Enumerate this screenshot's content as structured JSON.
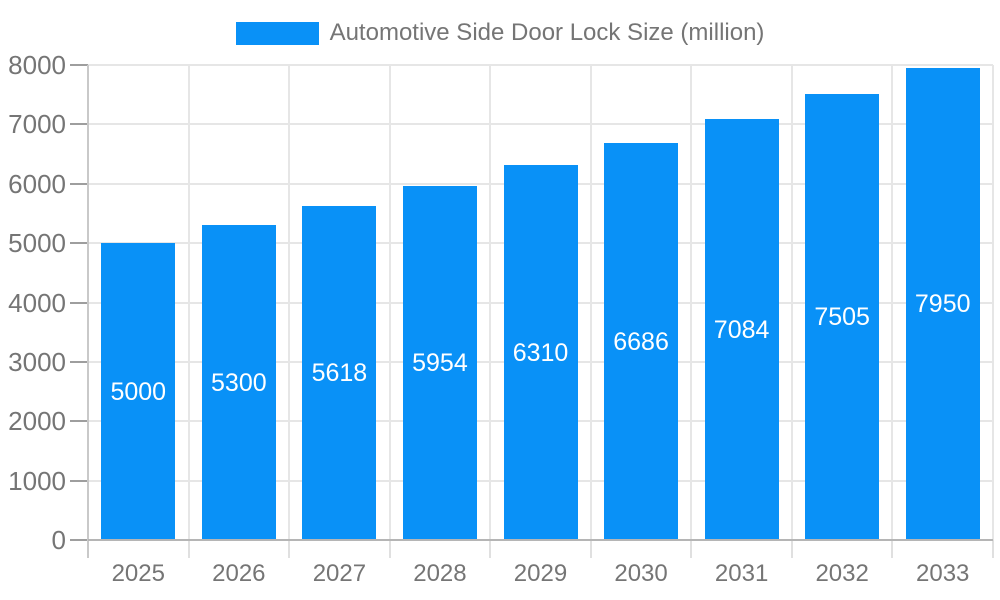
{
  "legend": {
    "label": "Automotive Side Door Lock Size (million)",
    "swatch_color": "#0991f7"
  },
  "chart_data": {
    "type": "bar",
    "title": "Automotive Side Door Lock Size (million)",
    "categories": [
      "2025",
      "2026",
      "2027",
      "2028",
      "2029",
      "2030",
      "2031",
      "2032",
      "2033"
    ],
    "values": [
      5000,
      5300,
      5618,
      5954,
      6310,
      6686,
      7084,
      7505,
      7950
    ],
    "series_name": "Automotive Side Door Lock Size (million)",
    "xlabel": "",
    "ylabel": "",
    "ylim": [
      0,
      8000
    ],
    "yticks": [
      0,
      1000,
      2000,
      3000,
      4000,
      5000,
      6000,
      7000,
      8000
    ],
    "grid": true,
    "legend_position": "top",
    "bar_color": "#0991f7",
    "bar_label_color": "#ffffff",
    "axis_text_color": "#757575",
    "gridline_color": "#e6e6e6"
  }
}
